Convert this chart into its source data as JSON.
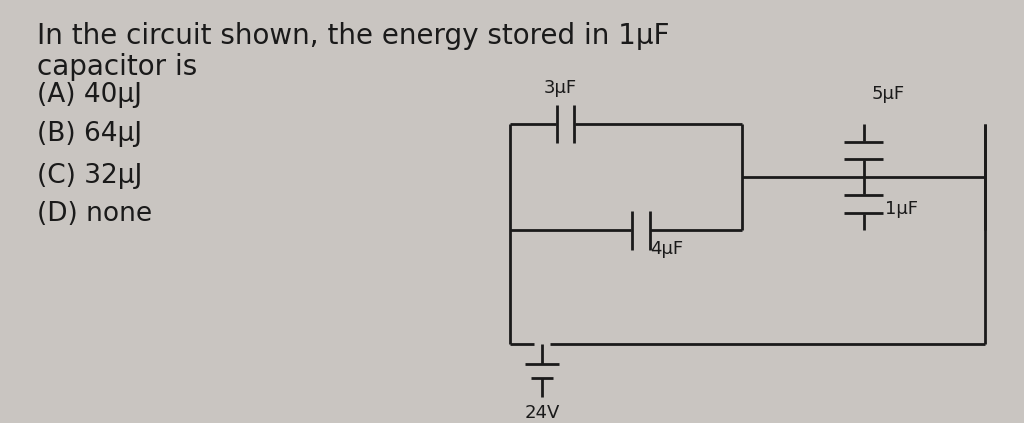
{
  "background_color": "#c9c5c1",
  "text_color": "#1a1a1a",
  "question_line1": "In the circuit shown, the energy stored in 1μF",
  "question_line2": "capacitor is",
  "options": [
    "(A) 40μJ",
    "(B) 64μJ",
    "(C) 32μJ",
    "(D) none"
  ],
  "labels": {
    "3uF": "3μF",
    "5uF": "5μF",
    "1uF": "1μF",
    "4uF": "4μF",
    "24V": "24V"
  },
  "font_size_question": 20,
  "font_size_options": 19,
  "font_size_labels": 13,
  "lw": 2.0
}
